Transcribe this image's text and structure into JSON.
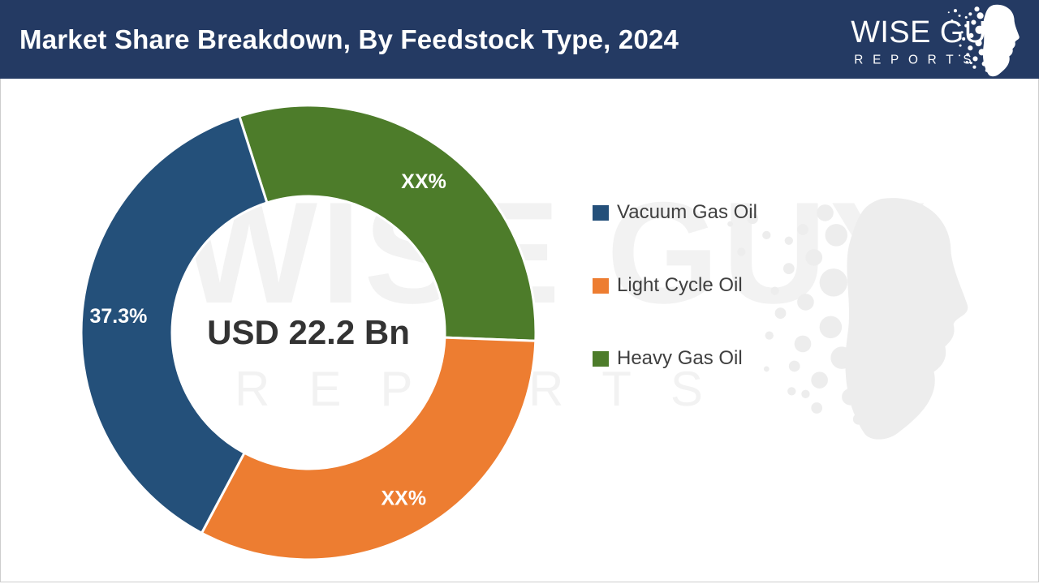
{
  "header": {
    "title": "Market Share Breakdown, By Feedstock Type, 2024",
    "bg_color": "#243a63",
    "logo": {
      "line1": "WISE GUY",
      "line2": "REPORTS"
    }
  },
  "watermark": {
    "line1": "WISE GUY",
    "line2": "REPORTS"
  },
  "chart_data": {
    "type": "pie",
    "subtype": "donut",
    "title": "Market Share Breakdown, By Feedstock Type, 2024",
    "center_label": "USD 22.2 Bn",
    "start_angle_deg": -17.7,
    "legend_position": "right",
    "slices": [
      {
        "name": "Heavy Gas Oil",
        "data_label": "XX%",
        "share_pct": 30.5,
        "color": "#4d7c2a"
      },
      {
        "name": "Light Cycle Oil",
        "data_label": "XX%",
        "share_pct": 32.2,
        "color": "#ed7d31"
      },
      {
        "name": "Vacuum Gas Oil",
        "data_label": "37.3%",
        "share_pct": 37.3,
        "color": "#24507a"
      }
    ],
    "legend": [
      {
        "label": "Vacuum Gas Oil",
        "color": "#24507a"
      },
      {
        "label": "Light Cycle Oil",
        "color": "#ed7d31"
      },
      {
        "label": "Heavy Gas Oil",
        "color": "#4d7c2a"
      }
    ]
  }
}
